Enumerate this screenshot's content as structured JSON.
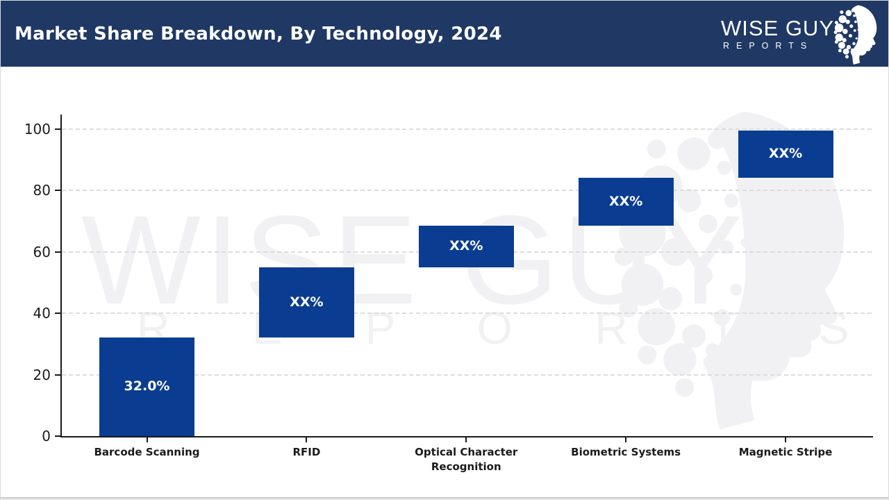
{
  "header": {
    "title": "Market Share Breakdown, By Technology, 2024",
    "logo": {
      "line1": "WISE GUY",
      "line2": "REPORTS"
    }
  },
  "watermark": {
    "line1": "WISE GUY",
    "line2": "R E P O R T S"
  },
  "colors": {
    "header_bg": "#1f3864",
    "title_text": "#ffffff",
    "bar": "#0a3d91",
    "bar_label": "#ffffff",
    "grid": "#dcdcdc",
    "axis": "#1a1a1a",
    "text": "#1a1a1a",
    "watermark": "#f1f1f3",
    "bottom_line": "#c4c4c4"
  },
  "chart_data": {
    "type": "bar",
    "subtype": "waterfall-floating-bars",
    "title": "Market Share Breakdown, By Technology, 2024",
    "categories": [
      "Barcode Scanning",
      "RFID",
      "Optical Character Recognition",
      "Biometric Systems",
      "Magnetic Stripe"
    ],
    "segments": [
      {
        "start": 0,
        "end": 32,
        "value": 32.0,
        "label": "32.0%"
      },
      {
        "start": 32,
        "end": 55,
        "value": 23.0,
        "label": "XX%"
      },
      {
        "start": 55,
        "end": 68.5,
        "value": 13.5,
        "label": "XX%"
      },
      {
        "start": 68.5,
        "end": 84,
        "value": 15.5,
        "label": "XX%"
      },
      {
        "start": 84,
        "end": 99.5,
        "value": 15.5,
        "label": "XX%"
      }
    ],
    "y_ticks": [
      0,
      20,
      40,
      60,
      80,
      100
    ],
    "ylim": [
      0,
      105
    ],
    "xlabel": "",
    "ylabel": "",
    "grid": "horizontal-dashed",
    "legend": "none"
  }
}
